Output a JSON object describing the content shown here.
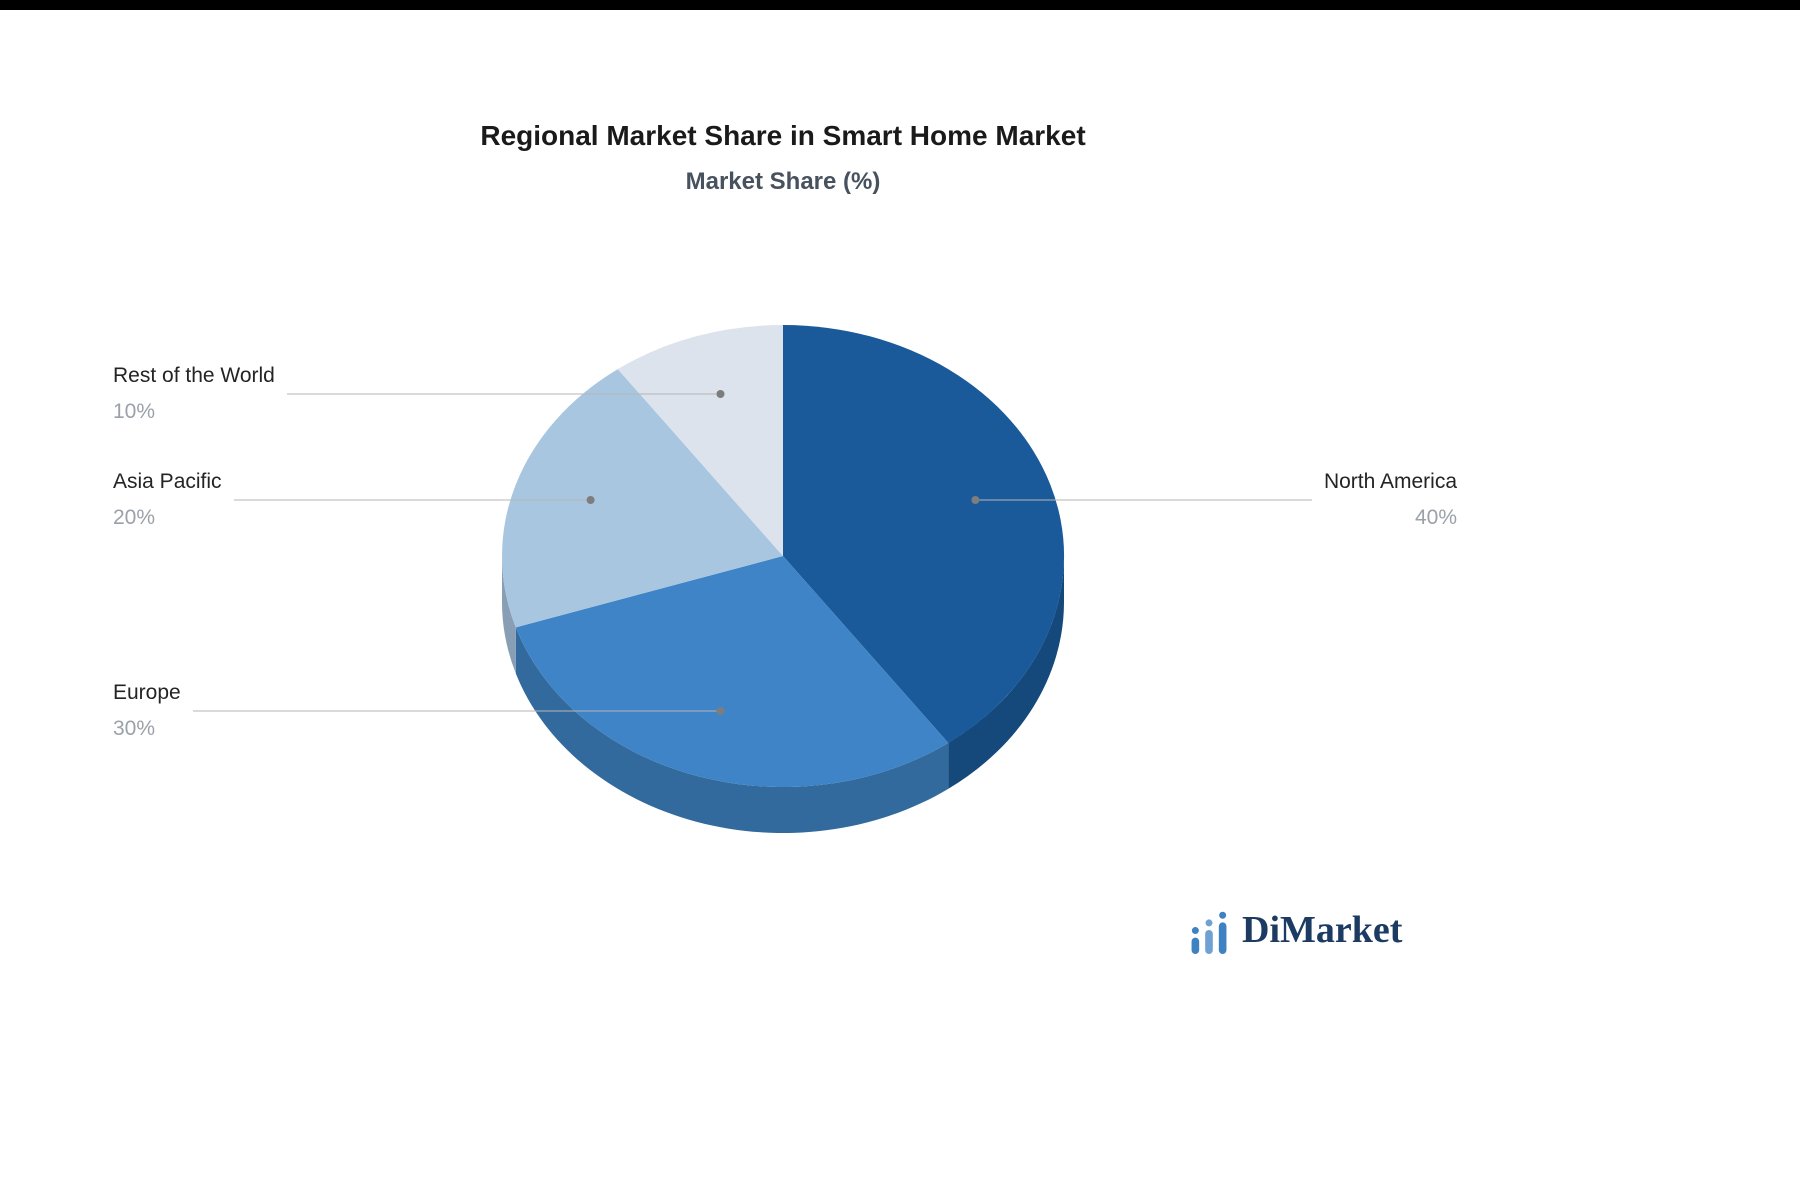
{
  "page": {
    "background": "#ffffff",
    "top_strip_color": "#000000"
  },
  "chart_data": {
    "type": "pie",
    "style": "3d",
    "title": "Regional Market Share in Smart Home Market",
    "subtitle": "Market Share (%)",
    "unit": "%",
    "categories": [
      "North America",
      "Europe",
      "Asia Pacific",
      "Rest of the World"
    ],
    "values": [
      40,
      30,
      20,
      10
    ],
    "labels_formatted": [
      "40%",
      "30%",
      "20%",
      "10%"
    ],
    "colors": [
      "#1A5A9A",
      "#3E84C6",
      "#A9C6E1",
      "#DCE3ED"
    ],
    "start_angle_deg": 0,
    "direction": "clockwise",
    "legend": "none",
    "leader_line_color": "#b5b5b5",
    "leader_dot_color": "#7d7d7d",
    "label_name_color": "#242424",
    "label_value_color": "#9aa1a8",
    "title_color": "#1a1a1a",
    "subtitle_color": "#47525e"
  },
  "branding": {
    "logo_text": "DiMarket",
    "logo_icon": "bar-chart-icon",
    "logo_text_color": "#1c3b63",
    "logo_icon_color": "#3F82C4"
  }
}
